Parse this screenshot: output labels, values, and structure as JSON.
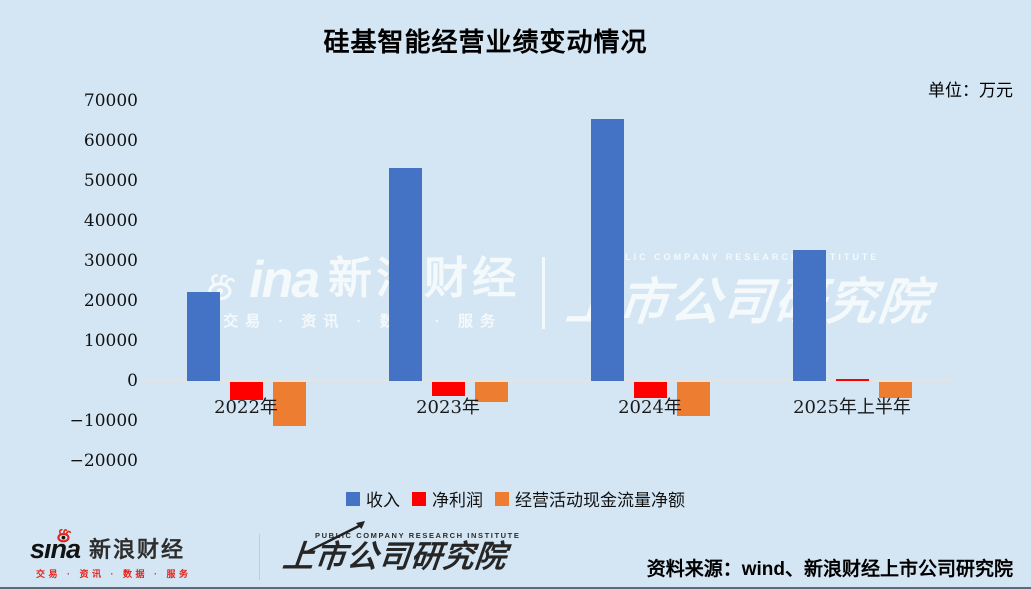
{
  "page": {
    "title": "硅基智能经营业绩变动情况",
    "unit_label": "单位：万元"
  },
  "watermark": {
    "sina_text": "ina",
    "brand": "新浪财经",
    "tagline": "交易 · 资讯 · 数据 · 服务",
    "institute_eng": "PUBLIC COMPANY RESEARCH INSTITUTE",
    "institute": "上市公司研究院"
  },
  "footer": {
    "sina_text": "sına",
    "brand": "新浪财经",
    "tagline": "交易 · 资讯 · 数据 · 服务",
    "institute_eng": "PUBLIC COMPANY RESEARCH INSTITUTE",
    "institute": "上市公司研究院",
    "source": "资料来源：wind、新浪财经上市公司研究院"
  },
  "chart_data": {
    "type": "bar",
    "title": "硅基智能经营业绩变动情况",
    "unit": "万元",
    "categories": [
      "2022年",
      "2023年",
      "2024年",
      "2025年上半年"
    ],
    "series": [
      {
        "name": "收入",
        "color": "#4472C4",
        "values": [
          22200,
          53300,
          65600,
          32700
        ]
      },
      {
        "name": "净利润",
        "color": "#FF0000",
        "values": [
          -4600,
          -3600,
          -4000,
          600
        ]
      },
      {
        "name": "经营活动现金流量净额",
        "color": "#ED7D31",
        "values": [
          -11100,
          -5000,
          -8400,
          -4000
        ]
      }
    ],
    "y_ticks": [
      70000,
      60000,
      50000,
      40000,
      30000,
      20000,
      10000,
      0,
      -10000,
      -20000
    ],
    "ylim": [
      -20000,
      70000
    ],
    "grid": false,
    "legend_position": "bottom",
    "background_color": "#D4E6F3"
  }
}
